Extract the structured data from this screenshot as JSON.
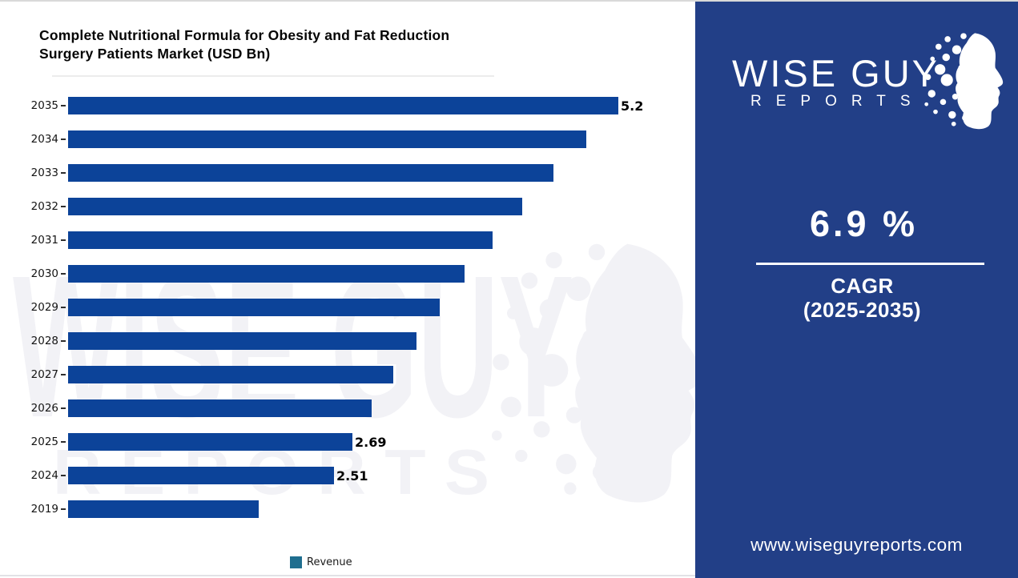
{
  "page": {
    "background": "#ffffff",
    "top_border_color": "#d9d9d9"
  },
  "chart": {
    "title_line1": "Complete Nutritional Formula for Obesity and Fat Reduction",
    "title_line2": "Surgery Patients Market (USD Bn)",
    "bar_color": "#0c4399",
    "legend": {
      "label": "Revenue",
      "swatch_color": "#1f6e8f"
    }
  },
  "chart_data": {
    "type": "bar",
    "orientation": "horizontal",
    "title": "Complete Nutritional Formula for Obesity and Fat Reduction Surgery Patients Market (USD Bn)",
    "unit": "USD Bn",
    "legend": [
      "Revenue"
    ],
    "legend_position": "bottom",
    "grid": false,
    "xlim": [
      0,
      5.45
    ],
    "categories": [
      "2035",
      "2034",
      "2033",
      "2032",
      "2031",
      "2030",
      "2029",
      "2028",
      "2027",
      "2026",
      "2025",
      "2024",
      "2019"
    ],
    "values": [
      5.2,
      4.9,
      4.59,
      4.29,
      4.01,
      3.75,
      3.51,
      3.29,
      3.07,
      2.87,
      2.69,
      2.51,
      1.8
    ],
    "data_labels": [
      {
        "category": "2035",
        "label": "5.2"
      },
      {
        "category": "2025",
        "label": "2.69"
      },
      {
        "category": "2024",
        "label": "2.51"
      }
    ]
  },
  "sidebar": {
    "bg_color": "#223f87",
    "logo": {
      "line1": "WISE GUY",
      "line2": "REPORTS",
      "icon": "dotted-head-profile"
    },
    "cagr": {
      "value": "6.9 %",
      "label_line1": "CAGR",
      "label_line2": "(2025-2035)"
    },
    "website": "www.wiseguyreports.com"
  },
  "watermark": {
    "line1": "WISE GUY",
    "line2": "R E P O R T S",
    "color": "#f2f2f6"
  }
}
